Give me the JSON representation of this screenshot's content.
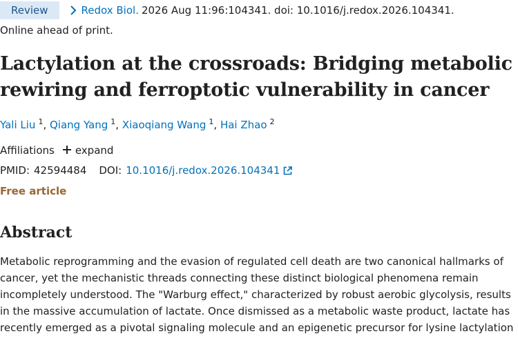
{
  "citation": {
    "badge": "Review",
    "journal": "Redox Biol.",
    "details": "2026 Aug 11:96:104341. doi: 10.1016/j.redox.2026.104341."
  },
  "status": "Online ahead of print.",
  "title": "Lactylation at the crossroads: Bridging metabolic rewiring and ferroptotic vulnerability in cancer",
  "authors": [
    {
      "name": "Yali Liu",
      "aff": "1"
    },
    {
      "name": "Qiang Yang",
      "aff": "1"
    },
    {
      "name": "Xiaoqiang Wang",
      "aff": "1"
    },
    {
      "name": "Hai Zhao",
      "aff": "2"
    }
  ],
  "author_separator": ", ",
  "affiliations": {
    "label": "Affiliations",
    "expand_label": "expand"
  },
  "identifiers": {
    "pmid_label": "PMID:",
    "pmid": "42594484",
    "doi_label": "DOI:",
    "doi": "10.1016/j.redox.2026.104341"
  },
  "free_article": "Free article",
  "abstract": {
    "heading": "Abstract",
    "text": "Metabolic reprogramming and the evasion of regulated cell death are two canonical hallmarks of cancer, yet the mechanistic threads connecting these distinct biological phenomena remain incompletely understood. The \"Warburg effect,\" characterized by robust aerobic glycolysis, results in the massive accumulation of lactate. Once dismissed as a metabolic waste product, lactate has recently emerged as a pivotal signaling molecule and an epigenetic precursor for lysine lactylation"
  },
  "colors": {
    "link": "#0071bc",
    "badge_bg": "#dbe9f7",
    "badge_text": "#20558a",
    "free_article": "#996633",
    "text": "#212121"
  },
  "icons": {
    "breadcrumb": "chevron-right-icon",
    "expand": "plus-icon",
    "external": "external-link-icon"
  }
}
